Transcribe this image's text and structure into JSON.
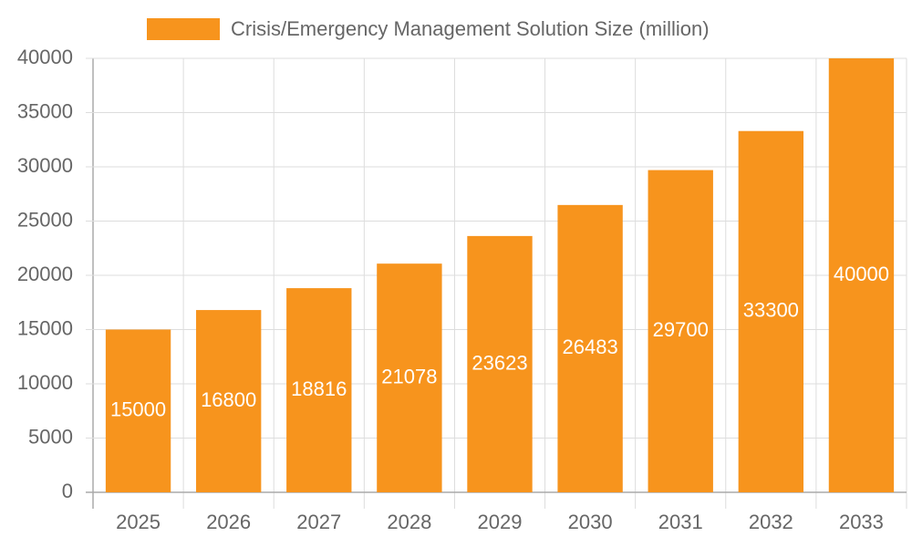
{
  "chart_data": {
    "type": "bar",
    "categories": [
      "2025",
      "2026",
      "2027",
      "2028",
      "2029",
      "2030",
      "2031",
      "2032",
      "2033"
    ],
    "series": [
      {
        "name": "Crisis/Emergency Management Solution Size (million)",
        "color": "#f7941d",
        "values": [
          15000,
          16800,
          18816,
          21078,
          23623,
          26483,
          29700,
          33300,
          40000
        ]
      }
    ],
    "ylim": [
      0,
      40000
    ],
    "yticks": [
      0,
      5000,
      10000,
      15000,
      20000,
      25000,
      30000,
      35000,
      40000
    ],
    "grid": true,
    "legend": "top",
    "data_labels": true
  }
}
